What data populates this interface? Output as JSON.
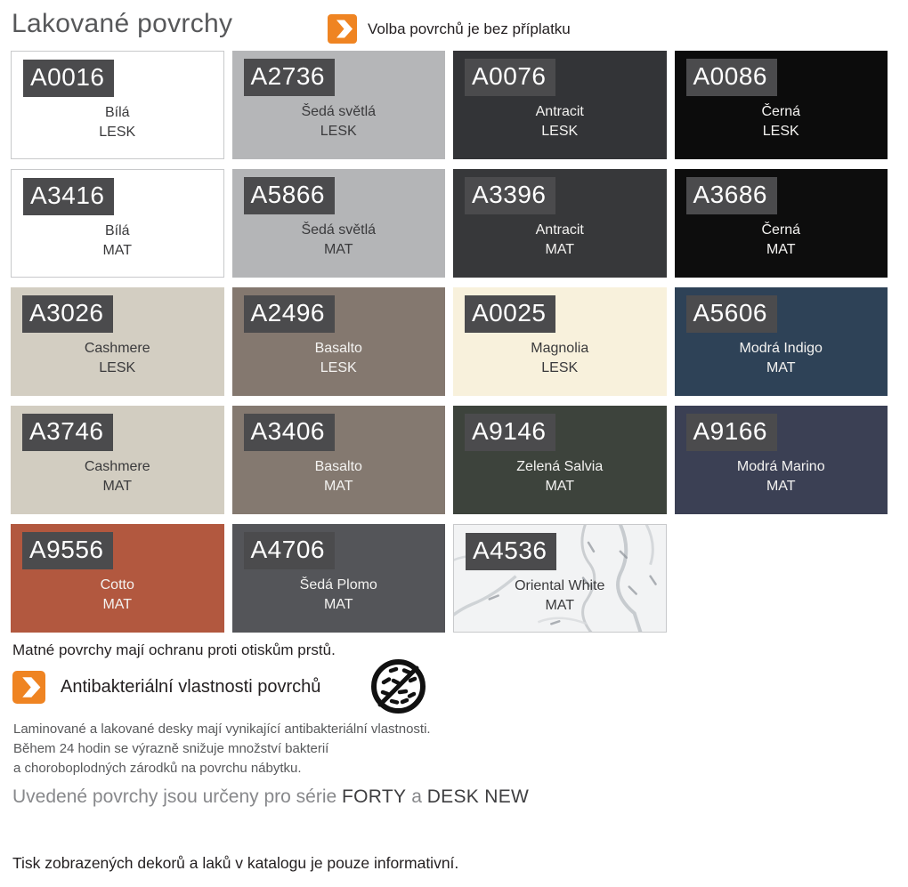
{
  "page": {
    "title": "Lakované povrchy",
    "top_note": "Volba povrchů je bez příplatku",
    "fingerprint_note": "Matné povrchy mají ochranu proti otiskům prstů.",
    "antibacterial_heading": "Antibakteriální vlastnosti povrchů",
    "antibacterial_line1": "Laminované a lakované desky mají vynikající antibakteriální vlastnosti.",
    "antibacterial_line2": "Během 24 hodin se výrazně snižuje množství bakterií",
    "antibacterial_line3": "a choroboplodných zárodků na povrchu nábytku.",
    "series_prefix": "Uvedené povrchy jsou určeny pro série",
    "series_1": "FORTY",
    "series_conjunction": "a",
    "series_2": "DESK NEW",
    "footer_note": "Tisk zobrazených dekorů a laků v katalogu je pouze informativní."
  },
  "colors": {
    "accent_orange": "#ef8422",
    "code_label_bg": "#4b4b4d",
    "title_gray": "#57585a",
    "body_text": "#231f20"
  },
  "icons": {
    "arrow_badge": "chevron-right-icon",
    "no_bacteria": "no-bacteria-icon"
  },
  "swatches": [
    {
      "code": "A0016",
      "name": "Bílá",
      "finish": "LESK",
      "bg": "#ffffff",
      "light_text": false,
      "bordered": true,
      "marble": false
    },
    {
      "code": "A2736",
      "name": "Šedá světlá",
      "finish": "LESK",
      "bg": "#b5b6b8",
      "light_text": false,
      "bordered": false,
      "marble": false
    },
    {
      "code": "A0076",
      "name": "Antracit",
      "finish": "LESK",
      "bg": "#333437",
      "light_text": true,
      "bordered": false,
      "marble": false
    },
    {
      "code": "A0086",
      "name": "Černá",
      "finish": "LESK",
      "bg": "#0c0c0c",
      "light_text": true,
      "bordered": false,
      "marble": false
    },
    {
      "code": "A3416",
      "name": "Bílá",
      "finish": "MAT",
      "bg": "#ffffff",
      "light_text": false,
      "bordered": true,
      "marble": false
    },
    {
      "code": "A5866",
      "name": "Šedá světlá",
      "finish": "MAT",
      "bg": "#b4b5b7",
      "light_text": false,
      "bordered": false,
      "marble": false
    },
    {
      "code": "A3396",
      "name": "Antracit",
      "finish": "MAT",
      "bg": "#37383a",
      "light_text": true,
      "bordered": false,
      "marble": false
    },
    {
      "code": "A3686",
      "name": "Černá",
      "finish": "MAT",
      "bg": "#0d0d0d",
      "light_text": true,
      "bordered": false,
      "marble": false
    },
    {
      "code": "A3026",
      "name": "Cashmere",
      "finish": "LESK",
      "bg": "#d3cec2",
      "light_text": false,
      "bordered": false,
      "marble": false
    },
    {
      "code": "A2496",
      "name": "Basalto",
      "finish": "LESK",
      "bg": "#84786f",
      "light_text": true,
      "bordered": false,
      "marble": false
    },
    {
      "code": "A0025",
      "name": "Magnolia",
      "finish": "LESK",
      "bg": "#f8f1dc",
      "light_text": false,
      "bordered": false,
      "marble": false
    },
    {
      "code": "A5606",
      "name": "Modrá Indigo",
      "finish": "MAT",
      "bg": "#2e4257",
      "light_text": true,
      "bordered": false,
      "marble": false
    },
    {
      "code": "A3746",
      "name": "Cashmere",
      "finish": "MAT",
      "bg": "#d2cdc1",
      "light_text": false,
      "bordered": false,
      "marble": false
    },
    {
      "code": "A3406",
      "name": "Basalto",
      "finish": "MAT",
      "bg": "#847970",
      "light_text": true,
      "bordered": false,
      "marble": false
    },
    {
      "code": "A9146",
      "name": "Zelená Salvia",
      "finish": "MAT",
      "bg": "#3d433c",
      "light_text": true,
      "bordered": false,
      "marble": false
    },
    {
      "code": "A9166",
      "name": "Modrá Marino",
      "finish": "MAT",
      "bg": "#3b4054",
      "light_text": true,
      "bordered": false,
      "marble": false
    },
    {
      "code": "A9556",
      "name": "Cotto",
      "finish": "MAT",
      "bg": "#b2583f",
      "light_text": true,
      "bordered": false,
      "marble": false
    },
    {
      "code": "A4706",
      "name": "Šedá Plomo",
      "finish": "MAT",
      "bg": "#545559",
      "light_text": true,
      "bordered": false,
      "marble": false
    },
    {
      "code": "A4536",
      "name": "Oriental White",
      "finish": "MAT",
      "bg": "#f2f3f4",
      "light_text": false,
      "bordered": true,
      "marble": true
    }
  ]
}
